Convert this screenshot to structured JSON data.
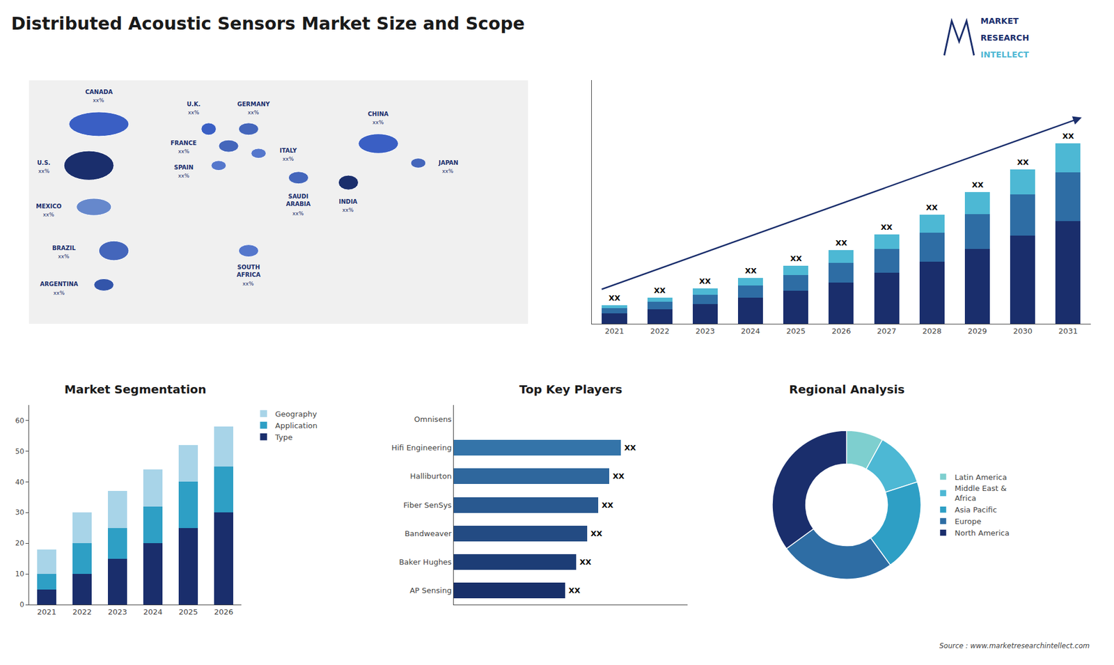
{
  "title": "Distributed Acoustic Sensors Market Size and Scope",
  "annotations": [
    {
      "text": "Source : www.marketresearchintellect.com"
    },
    {
      "text": "MARKET",
      "color": "#1a2e6c"
    },
    {
      "text": "RESEARCH",
      "color": "#1a2e6c"
    },
    {
      "text": "INTELLECT",
      "color": "#4db8d4"
    }
  ],
  "chart_data": [
    {
      "type": "map",
      "categories": [
        "CANADA",
        "U.S.",
        "MEXICO",
        "BRAZIL",
        "ARGENTINA",
        "U.K.",
        "FRANCE",
        "SPAIN",
        "GERMANY",
        "ITALY",
        "SAUDI\nARABIA",
        "SOUTH\nAFRICA",
        "CHINA",
        "JAPAN",
        "INDIA"
      ],
      "value_labels": [
        "xx%",
        "xx%",
        "xx%",
        "xx%",
        "xx%",
        "xx%",
        "xx%",
        "xx%",
        "xx%",
        "xx%",
        "xx%",
        "xx%",
        "xx%",
        "xx%",
        "xx%"
      ],
      "colors": [
        "#3a5fc4",
        "#1a2e6c",
        "#6688cc",
        "#4466bb",
        "#3355aa",
        "#3a5fc4",
        "#4466bb",
        "#5577cc",
        "#4466bb",
        "#5577cc",
        "#4466bb",
        "#5577cc",
        "#3a5fc4",
        "#4466bb",
        "#1a2e6c"
      ],
      "tick_labels": false
    },
    {
      "type": "bar",
      "stacked": true,
      "categories": [
        "2021",
        "2022",
        "2023",
        "2024",
        "2025",
        "2026",
        "2027",
        "2028",
        "2029",
        "2030",
        "2031"
      ],
      "series": [
        {
          "color": "#1a2e6c",
          "values": [
            1.0,
            1.4,
            1.9,
            2.5,
            3.2,
            4.0,
            4.9,
            6.0,
            7.2,
            8.5,
            9.9
          ]
        },
        {
          "color": "#2e6da4",
          "values": [
            0.5,
            0.7,
            0.9,
            1.2,
            1.5,
            1.9,
            2.3,
            2.8,
            3.4,
            4.0,
            4.7
          ]
        },
        {
          "color": "#4db8d4",
          "values": [
            0.3,
            0.4,
            0.6,
            0.7,
            0.9,
            1.2,
            1.4,
            1.7,
            2.1,
            2.4,
            2.8
          ]
        }
      ],
      "ylim": [
        0,
        23.49
      ],
      "tick_labels": "x",
      "grid": false,
      "annotations": [
        {
          "x": "2021",
          "text": "XX"
        },
        {
          "x": "2022",
          "text": "XX"
        },
        {
          "x": "2023",
          "text": "XX"
        },
        {
          "x": "2024",
          "text": "XX"
        },
        {
          "x": "2025",
          "text": "XX"
        },
        {
          "x": "2026",
          "text": "XX"
        },
        {
          "x": "2027",
          "text": "XX"
        },
        {
          "x": "2028",
          "text": "XX"
        },
        {
          "x": "2029",
          "text": "XX"
        },
        {
          "x": "2030",
          "text": "XX"
        },
        {
          "x": "2031",
          "text": "XX"
        }
      ]
    },
    {
      "type": "bar",
      "title": "Market Segmentation",
      "stacked": true,
      "categories": [
        "2021",
        "2022",
        "2023",
        "2024",
        "2025",
        "2026"
      ],
      "series": [
        {
          "name": "Type",
          "color": "#1a2e6c",
          "values": [
            5,
            10,
            15,
            20,
            25,
            30
          ]
        },
        {
          "name": "Application",
          "color": "#2e9fc5",
          "values": [
            5,
            10,
            10,
            12,
            15,
            15
          ]
        },
        {
          "name": "Geography",
          "color": "#a8d4e8",
          "values": [
            8,
            10,
            12,
            12,
            12,
            13
          ]
        }
      ],
      "ylim": [
        0,
        65
      ],
      "yticks": [
        0,
        10,
        20,
        30,
        40,
        50,
        60
      ],
      "grid": false,
      "legend": "upper right"
    },
    {
      "type": "bar",
      "title": "Top Key Players",
      "orientation": "horizontal",
      "categories": [
        "Omnisens",
        "Hifi Engineering",
        "Halliburton",
        "Fiber SenSys",
        "Bandweaver",
        "Baker Hughes",
        "AP Sensing"
      ],
      "values": [
        0,
        7.5,
        7.0,
        6.5,
        6.0,
        5.5,
        5.0
      ],
      "colors": [
        "#ffffff",
        "#3474a9",
        "#2f679d",
        "#295990",
        "#234b83",
        "#1d3d76",
        "#18306a"
      ],
      "xlim": [
        0,
        10.5
      ],
      "tick_labels": "y",
      "grid": false,
      "annotations": [
        {
          "y": "Hifi Engineering",
          "text": "XX"
        },
        {
          "y": "Halliburton",
          "text": "XX"
        },
        {
          "y": "Fiber SenSys",
          "text": "XX"
        },
        {
          "y": "Bandweaver",
          "text": "XX"
        },
        {
          "y": "Baker Hughes",
          "text": "XX"
        },
        {
          "y": "AP Sensing",
          "text": "XX"
        }
      ]
    },
    {
      "type": "pie",
      "title": "Regional Analysis",
      "categories": [
        "Latin America",
        "Middle East &\nAfrica",
        "Asia Pacific",
        "Europe",
        "North America"
      ],
      "values": [
        8,
        12,
        20,
        25,
        35
      ],
      "colors": [
        "#7ecfcf",
        "#4db8d4",
        "#2e9fc5",
        "#2e6da4",
        "#1a2e6c"
      ],
      "legend": "right"
    }
  ]
}
